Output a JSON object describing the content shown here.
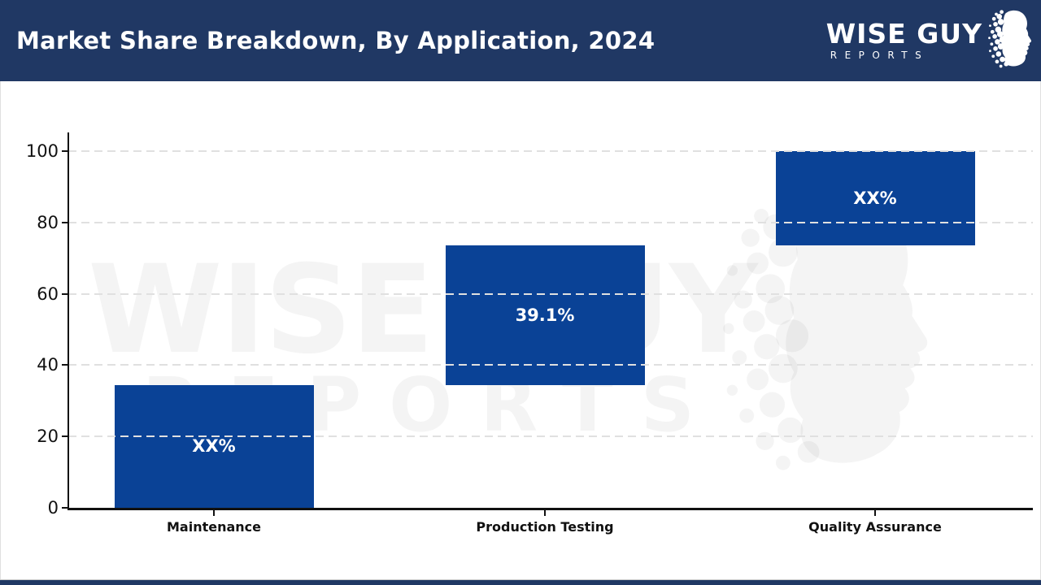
{
  "header": {
    "title": "Market Share Breakdown, By Application, 2024",
    "logo": {
      "line1": "WISE GUY",
      "line2": "REPORTS"
    }
  },
  "watermark": {
    "line1": "WISE GUY",
    "line2": "REPORTS"
  },
  "chart_data": {
    "type": "bar",
    "variant": "floating-waterfall",
    "title": "Market Share Breakdown, By Application, 2024",
    "categories": [
      "Maintenance",
      "Production Testing",
      "Quality Assurance"
    ],
    "segments": [
      {
        "category": "Maintenance",
        "start": 0,
        "end": 34.5,
        "label": "XX%"
      },
      {
        "category": "Production Testing",
        "start": 34.5,
        "end": 73.6,
        "label": "39.1%"
      },
      {
        "category": "Quality Assurance",
        "start": 73.6,
        "end": 100,
        "label": "XX%"
      }
    ],
    "ylim": [
      0,
      100
    ],
    "yticks": [
      0,
      20,
      40,
      60,
      80,
      100
    ],
    "xlabel": "",
    "ylabel": "",
    "grid": "horizontal-dashed",
    "legend": "none",
    "bar_color": "#0a4296",
    "bar_label_color": "#ffffff"
  },
  "colors": {
    "header_bg": "#203864",
    "footer_bg": "#203864",
    "axis": "#111111",
    "gridline": "#e0e0e0",
    "watermark": "rgba(0,0,0,0.045)"
  }
}
